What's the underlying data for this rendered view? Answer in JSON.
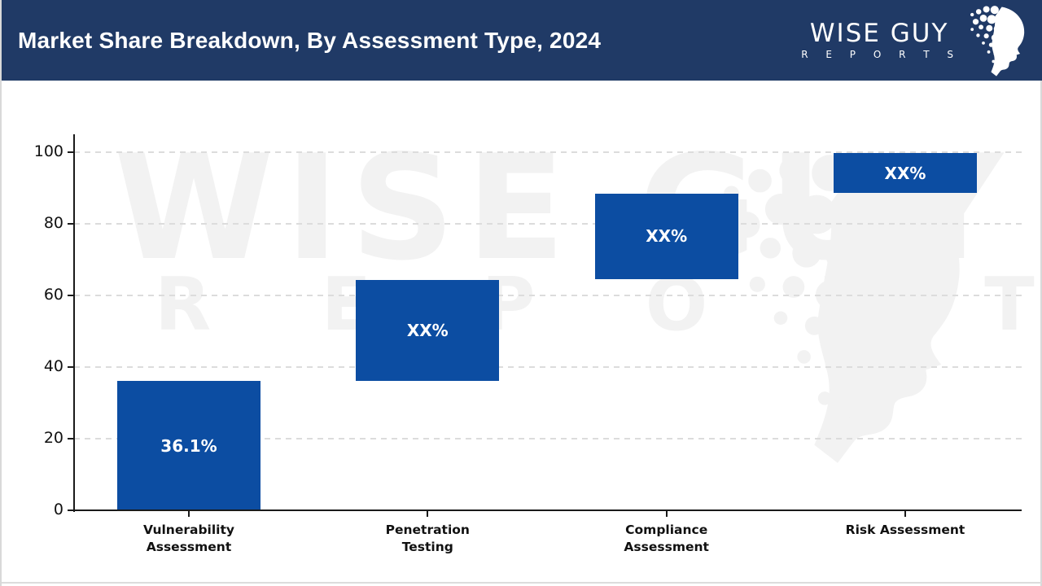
{
  "page": {
    "bg_color": "#ffffff",
    "frame_color": "#d9d9d9"
  },
  "header": {
    "bg_color": "#203a66",
    "title": "Market Share Breakdown, By Assessment Type, 2024",
    "logo": {
      "name": "WISE GUY",
      "tagline": "R E P O R T S"
    }
  },
  "watermark": {
    "line1": "WISE GUY",
    "line2": "R E P O R T S"
  },
  "chart_data": {
    "type": "bar",
    "variant": "floating-segment-bars",
    "title": "Market Share Breakdown, By Assessment Type, 2024",
    "categories": [
      "Vulnerability Assessment",
      "Penetration Testing",
      "Compliance Assessment",
      "Risk Assessment"
    ],
    "category_label_lines": [
      [
        "Vulnerability",
        "Assessment"
      ],
      [
        "Penetration",
        "Testing"
      ],
      [
        "Compliance",
        "Assessment"
      ],
      [
        "Risk Assessment"
      ]
    ],
    "bars": [
      {
        "category": "Vulnerability Assessment",
        "start": 0,
        "end": 36.1,
        "label": "36.1%"
      },
      {
        "category": "Penetration Testing",
        "start": 36.1,
        "end": 64.3,
        "label": "XX%"
      },
      {
        "category": "Compliance Assessment",
        "start": 64.5,
        "end": 88.4,
        "label": "XX%"
      },
      {
        "category": "Risk Assessment",
        "start": 88.6,
        "end": 99.6,
        "label": "XX%"
      }
    ],
    "ylim": [
      0,
      105
    ],
    "yticks": [
      0,
      20,
      40,
      60,
      80,
      100
    ],
    "grid": {
      "axis": "y",
      "style": "dashed",
      "color": "#dcdcdc"
    },
    "bar_color": "#0c4da2",
    "bar_label_color": "#ffffff",
    "axis_color": "#1a1a1a",
    "legend": "none"
  }
}
